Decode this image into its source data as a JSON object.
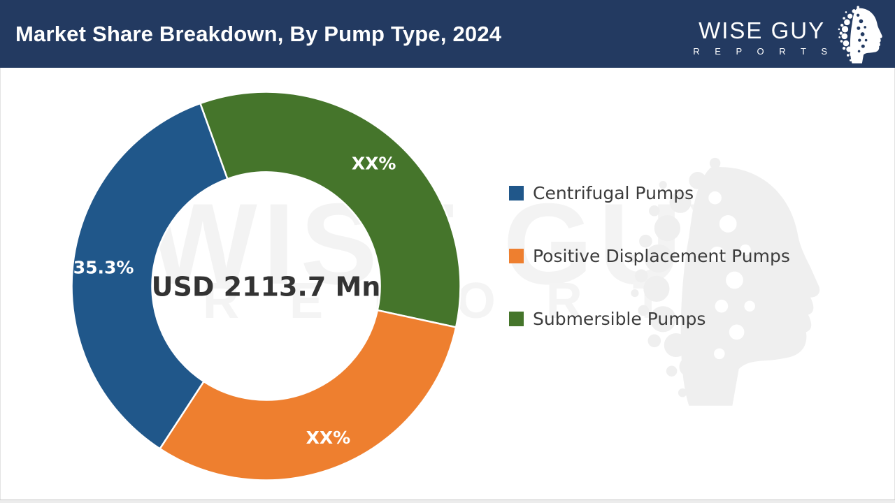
{
  "header": {
    "title": "Market Share Breakdown, By Pump Type, 2024",
    "logo": {
      "line1": "WISE GUY",
      "line2": "REPORTS"
    }
  },
  "watermark": {
    "line1": "WISE GUY",
    "line2": "REPORTS"
  },
  "chart_data": {
    "type": "pie",
    "donut": true,
    "title": "Market Share Breakdown, By Pump Type, 2024",
    "center_label": "USD 2113.7 Mn",
    "start_angle_deg": 109.8,
    "direction": "clockwise",
    "legend_position": "right",
    "segments": [
      {
        "name": "Submersible Pumps",
        "label": "XX%",
        "pct_est": 33.9,
        "color": "#45752B"
      },
      {
        "name": "Positive Displacement Pumps",
        "label": "XX%",
        "pct_est": 30.8,
        "color": "#EE7F2F"
      },
      {
        "name": "Centrifugal Pumps",
        "label": "35.3%",
        "pct_est": 35.3,
        "color": "#20578A"
      }
    ]
  },
  "legend": {
    "items": [
      {
        "label": "Centrifugal Pumps",
        "color": "#20578A"
      },
      {
        "label": "Positive Displacement Pumps",
        "color": "#EE7F2F"
      },
      {
        "label": "Submersible Pumps",
        "color": "#45752B"
      }
    ]
  },
  "colors": {
    "header_bg": "#233A61",
    "center_text": "#333333",
    "legend_text": "#3C3C3C",
    "watermark": "#F3F3F3",
    "bottom_strip": "#ECECEC"
  }
}
